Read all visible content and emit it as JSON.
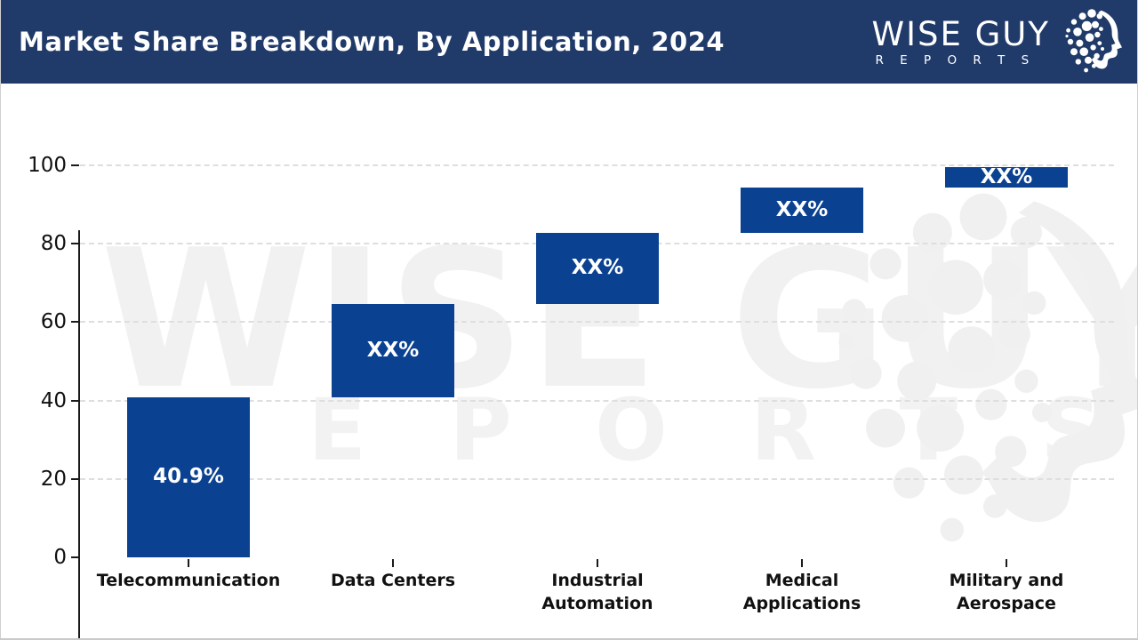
{
  "header": {
    "title": "Market Share Breakdown, By Application, 2024",
    "background_color": "#203a69",
    "logo": {
      "name": "WISE GUY",
      "tagline": "R E P O R T S",
      "icon": "wise-guy-head-icon"
    }
  },
  "watermark": {
    "line1": "WISE GUY",
    "line2": "R E P O R T S"
  },
  "chart_data": {
    "type": "bar",
    "subtype": "waterfall",
    "title": "Market Share Breakdown, By Application, 2024",
    "categories": [
      "Telecommunication",
      "Data Centers",
      "Industrial\nAutomation",
      "Medical\nApplications",
      "Military and\nAerospace"
    ],
    "values": [
      40.9,
      23.8,
      18.0,
      11.7,
      5.1
    ],
    "segments": [
      {
        "start": 0,
        "end": 40.9
      },
      {
        "start": 40.9,
        "end": 64.7
      },
      {
        "start": 64.7,
        "end": 82.7
      },
      {
        "start": 82.7,
        "end": 94.4
      },
      {
        "start": 94.4,
        "end": 99.5
      }
    ],
    "bar_labels": [
      "40.9%",
      "XX%",
      "XX%",
      "XX%",
      "XX%"
    ],
    "xlabel": "",
    "ylabel": "",
    "yticks": [
      0,
      20,
      40,
      60,
      80,
      100
    ],
    "ylim": [
      0,
      104.5
    ],
    "bar_color": "#0a4190",
    "bar_label_color": "#ffffff",
    "grid": "horizontal-dashed",
    "grid_color": "#dedede",
    "legend": "none"
  }
}
